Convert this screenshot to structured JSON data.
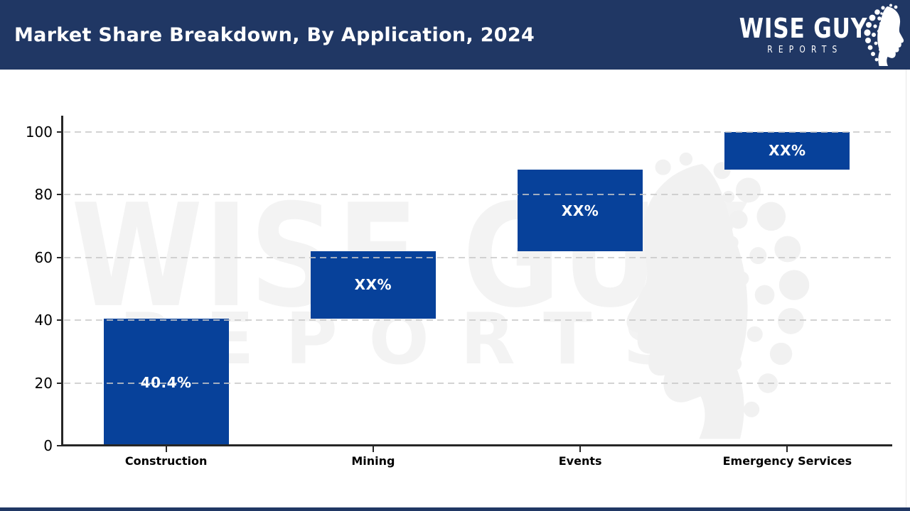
{
  "header": {
    "title": "Market Share Breakdown, By Application, 2024",
    "logo": {
      "name": "WISE GUY",
      "subname": "REPORTS"
    },
    "bg_color": "#203764"
  },
  "watermark": {
    "line1": "WISE GUY",
    "line2": "REPORTS"
  },
  "chart_data": {
    "type": "bar",
    "variant": "waterfall",
    "title": "Market Share Breakdown, By Application, 2024",
    "categories": [
      "Construction",
      "Mining",
      "Events",
      "Emergency Services"
    ],
    "segments": [
      {
        "category": "Construction",
        "base": 0,
        "top": 40.4,
        "label": "40.4%"
      },
      {
        "category": "Mining",
        "base": 40.4,
        "top": 62,
        "label": "XX%"
      },
      {
        "category": "Events",
        "base": 62,
        "top": 87.8,
        "label": "XX%"
      },
      {
        "category": "Emergency Services",
        "base": 87.8,
        "top": 100,
        "label": "XX%"
      }
    ],
    "yticks": [
      0,
      20,
      40,
      60,
      80,
      100
    ],
    "ylim": [
      0,
      105
    ],
    "xlabel": "",
    "ylabel": "",
    "grid": "horizontal-dashed",
    "legend": "none",
    "bar_color": "#07419a",
    "bar_label_color": "#ffffff",
    "axis_color": "#262626"
  }
}
